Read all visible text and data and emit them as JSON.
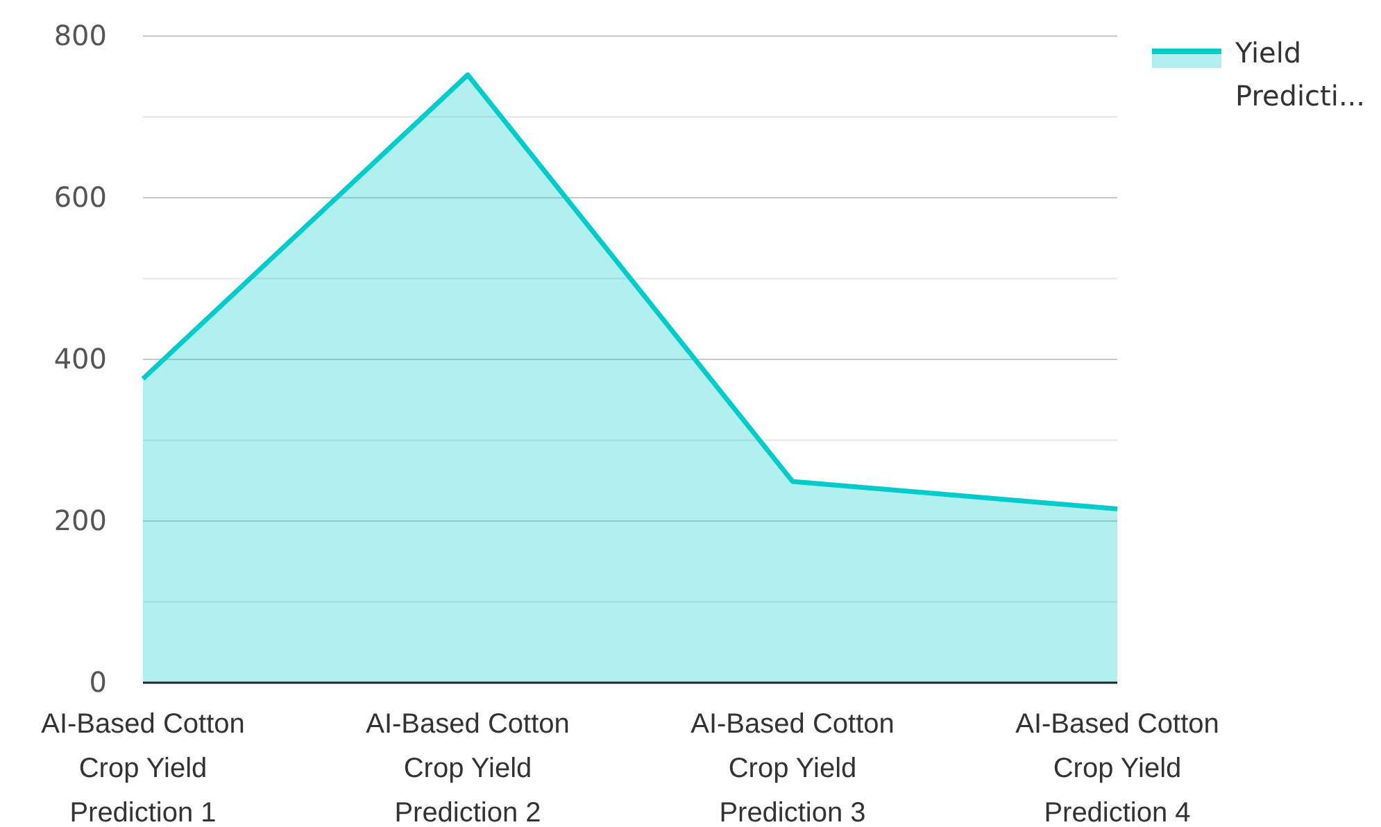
{
  "chart_data": {
    "type": "area",
    "categories": [
      "AI-Based Cotton Crop Yield Prediction 1",
      "AI-Based Cotton Crop Yield Prediction 2",
      "AI-Based Cotton Crop Yield Prediction 3",
      "AI-Based Cotton Crop Yield Prediction 4"
    ],
    "series": [
      {
        "name": "Yield Predicti...",
        "color": "#00cccc",
        "values": [
          376,
          752,
          249,
          215
        ]
      }
    ],
    "ylim": [
      0,
      800
    ],
    "yticks": [
      0,
      {
        "value": 100,
        "label": null
      },
      200,
      {
        "value": 300,
        "label": null
      },
      400,
      {
        "value": 500,
        "label": null
      },
      600,
      {
        "value": 700,
        "label": null
      },
      800
    ],
    "grid": "y",
    "legend": "top right"
  }
}
